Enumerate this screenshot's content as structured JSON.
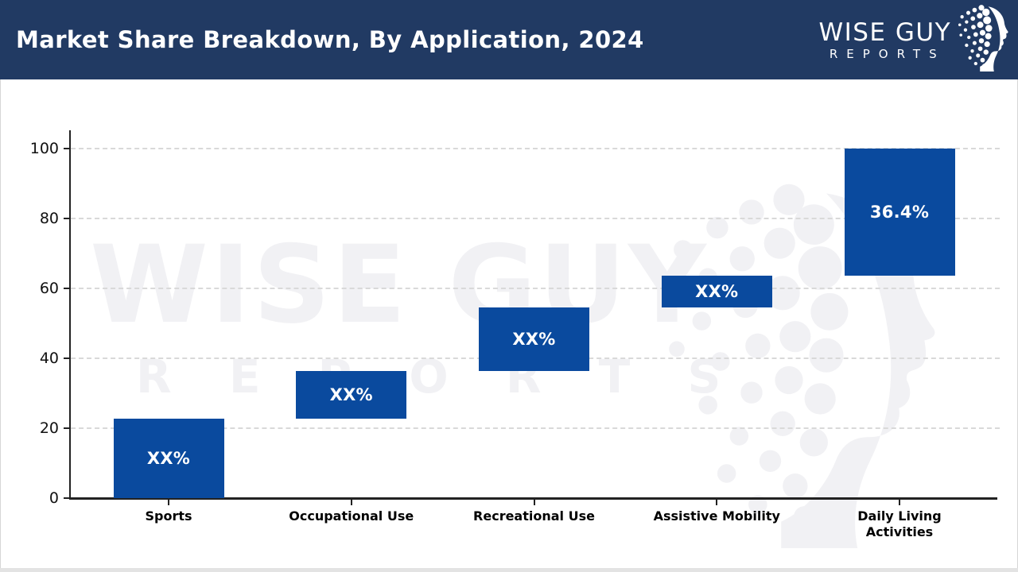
{
  "header": {
    "title": "Market Share Breakdown, By Application, 2024",
    "bg_color": "#213a63",
    "logo": {
      "wordmark": "WISE GUY",
      "subtitle": "REPORTS"
    }
  },
  "watermark": {
    "wordmark": "WISE GUY",
    "subtitle": "R E P O R T S"
  },
  "chart_data": {
    "type": "bar",
    "subtype": "waterfall",
    "title": "Market Share Breakdown, By Application, 2024",
    "categories": [
      "Sports",
      "Occupational Use",
      "Recreational Use",
      "Assistive Mobility",
      "Daily Living\nActivities"
    ],
    "segments": [
      {
        "category": "Sports",
        "start": 0,
        "end": 22.7,
        "value": 22.7,
        "label": "XX%"
      },
      {
        "category": "Occupational Use",
        "start": 22.7,
        "end": 36.4,
        "value": 13.7,
        "label": "XX%"
      },
      {
        "category": "Recreational Use",
        "start": 36.4,
        "end": 54.5,
        "value": 18.1,
        "label": "XX%"
      },
      {
        "category": "Assistive Mobility",
        "start": 54.5,
        "end": 63.6,
        "value": 9.1,
        "label": "XX%"
      },
      {
        "category": "Daily Living Activities",
        "start": 63.6,
        "end": 100,
        "value": 36.4,
        "label": "36.4%"
      }
    ],
    "yticks": [
      0,
      20,
      40,
      60,
      80,
      100
    ],
    "ylim": [
      0,
      105
    ],
    "xlabel": "",
    "ylabel": "",
    "grid": "dashed-horizontal",
    "legend": "none",
    "bar_color": "#0a4a9e",
    "bar_label_color": "#ffffff",
    "axis_color": "#222222",
    "gridline_color": "#d9d9d9"
  }
}
